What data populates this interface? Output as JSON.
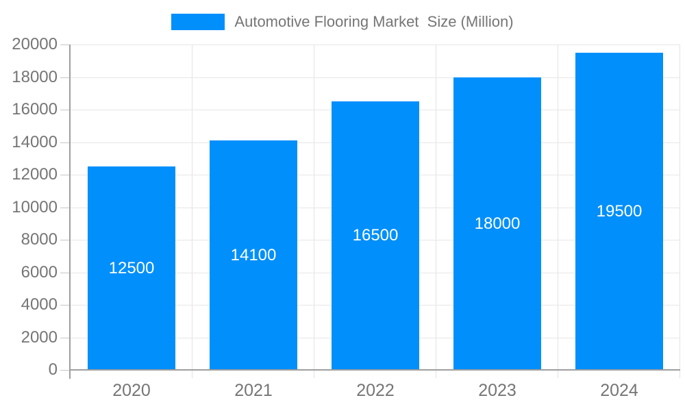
{
  "legend": {
    "label": "Automotive Flooring Market  Size (Million)"
  },
  "chart_data": {
    "type": "bar",
    "title": "Automotive Flooring Market  Size (Million)",
    "series_name": "Automotive Flooring Market  Size (Million)",
    "categories": [
      "2020",
      "2021",
      "2022",
      "2023",
      "2024"
    ],
    "values": [
      12500,
      14100,
      16500,
      18000,
      19500
    ],
    "value_labels": [
      "12500",
      "14100",
      "16500",
      "18000",
      "19500"
    ],
    "xlabel": "",
    "ylabel": "",
    "ylim": [
      0,
      20000
    ],
    "yticks": [
      0,
      2000,
      4000,
      6000,
      8000,
      10000,
      12000,
      14000,
      16000,
      18000,
      20000
    ],
    "grid": true,
    "legend_position": "top"
  },
  "colors": {
    "bar": "#008FFB",
    "value_label": "#ffffff",
    "grid_h": "#e6e6e6",
    "grid_v": "#e2e2e2",
    "axis": "#9e9e9e",
    "tick": "#c6c6c6",
    "axis_label": "#757575",
    "legend_text": "#757575",
    "background": "#ffffff"
  }
}
